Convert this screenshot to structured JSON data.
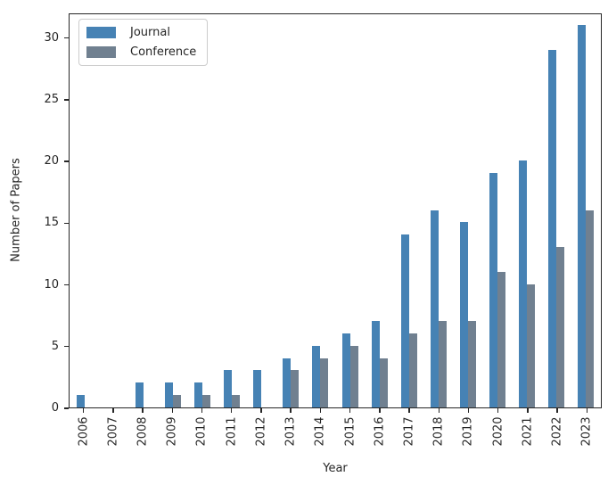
{
  "chart_data": {
    "type": "bar",
    "title": "",
    "xlabel": "Year",
    "ylabel": "Number of Papers",
    "categories": [
      "2006",
      "2007",
      "2008",
      "2009",
      "2010",
      "2011",
      "2012",
      "2013",
      "2014",
      "2015",
      "2016",
      "2017",
      "2018",
      "2019",
      "2020",
      "2021",
      "2022",
      "2023"
    ],
    "series": [
      {
        "name": "Journal",
        "color": "#4682B4",
        "values": [
          1,
          0,
          2,
          2,
          2,
          3,
          3,
          4,
          5,
          6,
          7,
          14,
          16,
          15,
          19,
          20,
          29,
          31
        ]
      },
      {
        "name": "Conference",
        "color": "#708090",
        "values": [
          0,
          0,
          0,
          1,
          1,
          1,
          0,
          3,
          4,
          5,
          4,
          6,
          7,
          7,
          11,
          10,
          13,
          16
        ]
      }
    ],
    "ylim": [
      0,
      32
    ],
    "yticks": [
      0,
      5,
      10,
      15,
      20,
      25,
      30
    ],
    "grid": false,
    "legend_position": "upper-left"
  }
}
